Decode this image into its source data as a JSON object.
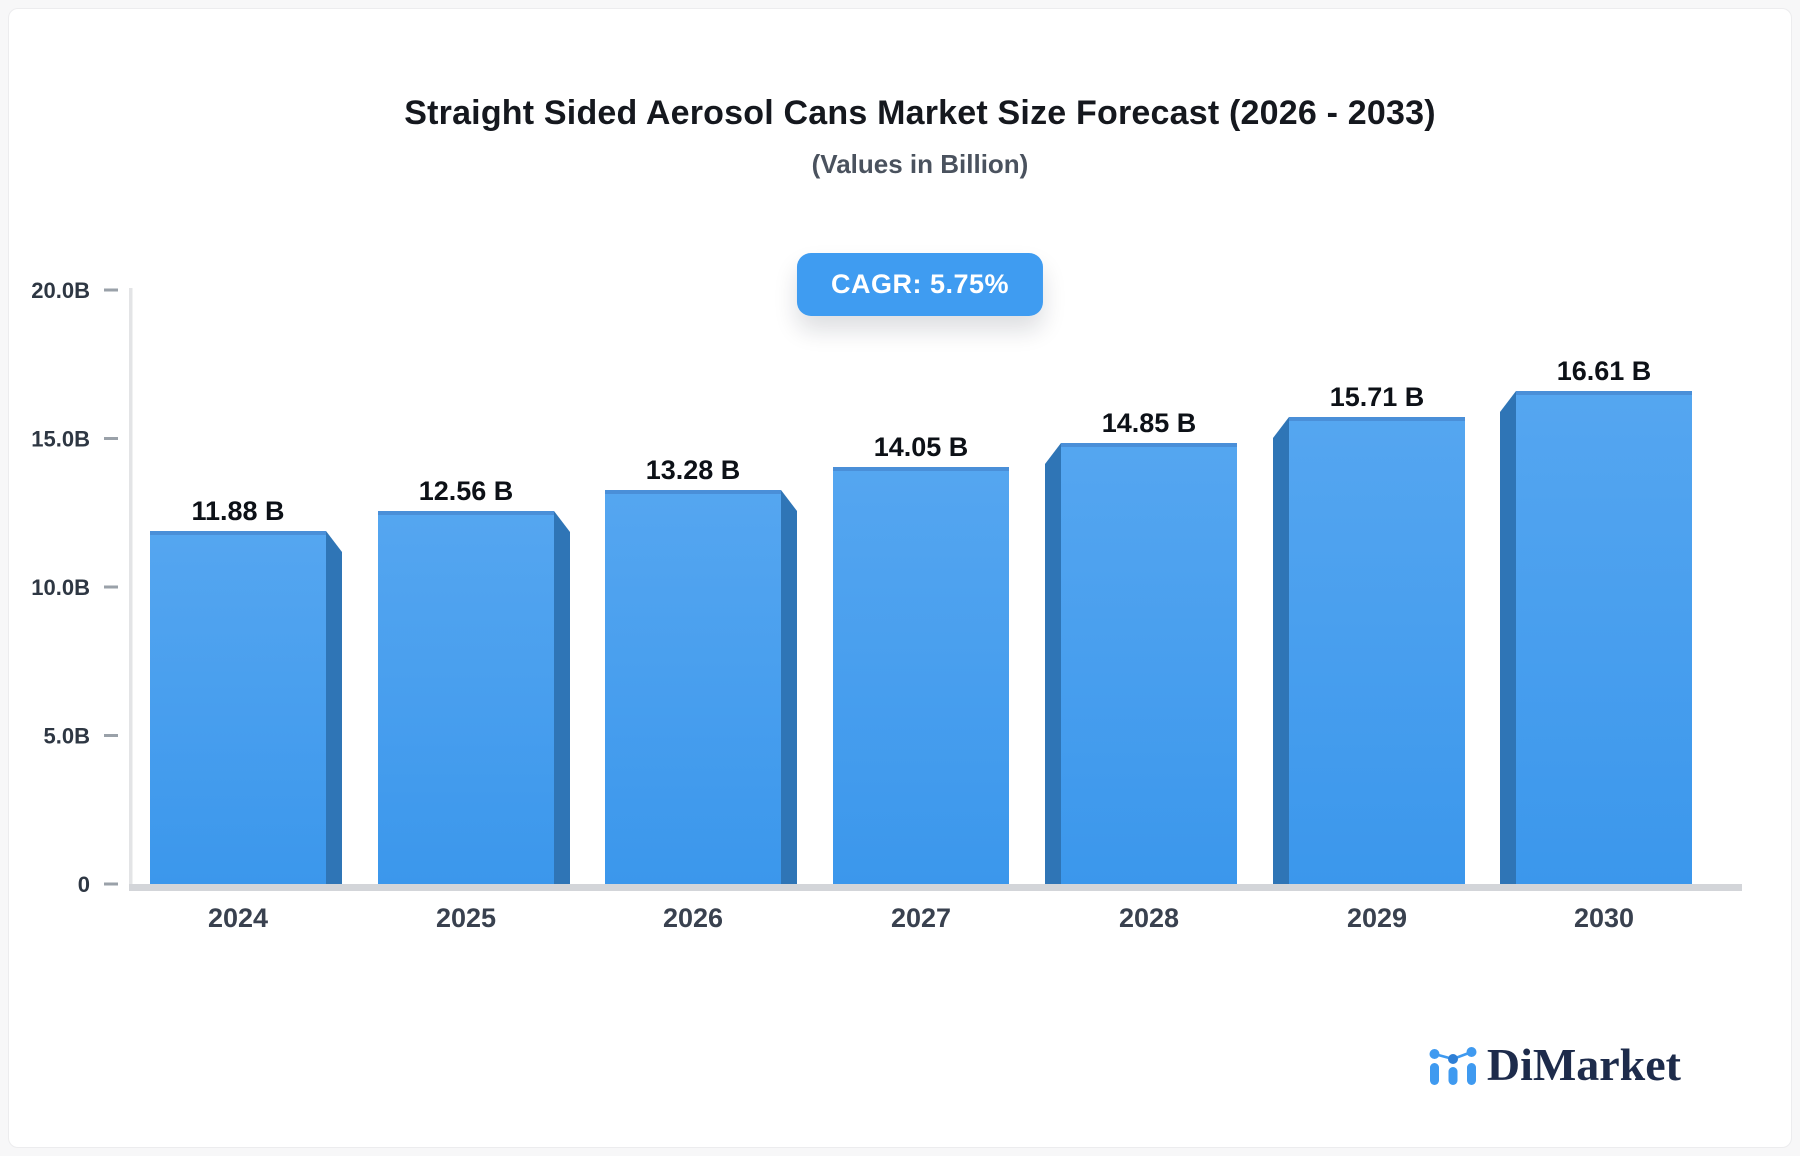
{
  "header": {
    "title": "Straight Sided Aerosol Cans Market Size Forecast (2026 - 2033)",
    "subtitle": "(Values in Billion)",
    "cagr_label": "CAGR: 5.75%"
  },
  "chart_data": {
    "type": "bar",
    "title": "Straight Sided Aerosol Cans Market Size Forecast (2026 - 2033)",
    "subtitle": "(Values in Billion)",
    "cagr_badge": "CAGR: 5.75%",
    "categories": [
      "2024",
      "2025",
      "2026",
      "2027",
      "2028",
      "2029",
      "2030"
    ],
    "values": [
      11.88,
      12.56,
      13.28,
      14.05,
      14.85,
      15.71,
      16.61
    ],
    "value_labels": [
      "11.88 B",
      "12.56 B",
      "13.28 B",
      "14.05 B",
      "14.85 B",
      "15.71 B",
      "16.61 B"
    ],
    "xlabel": "",
    "ylabel": "",
    "ylim": [
      0,
      20
    ],
    "yticks": [
      {
        "value": 0,
        "label": "0"
      },
      {
        "value": 5,
        "label": "5.0B"
      },
      {
        "value": 10,
        "label": "10.0B"
      },
      {
        "value": 15,
        "label": "15.0B"
      },
      {
        "value": 20,
        "label": "20.0B"
      }
    ],
    "grid": "off",
    "legend": "none",
    "style": "3d-perspective-bars",
    "colors": {
      "bar_face_top": "#55a6f0",
      "bar_face_bottom": "#3b97ec",
      "bar_side": "#2f75b6",
      "bar_top_edge": "#4a8fd8",
      "axis_line": "#e3e4e6",
      "baseline": "#d3d5d9",
      "tick": "#9aa1a9",
      "tick_label": "#2e3743",
      "x_label": "#39414f",
      "value_label": "#0d1117",
      "badge_bg": "#3f9cf1"
    }
  },
  "logo": {
    "icon": "mini-bar-chart-icon",
    "text": "DiMarket"
  }
}
